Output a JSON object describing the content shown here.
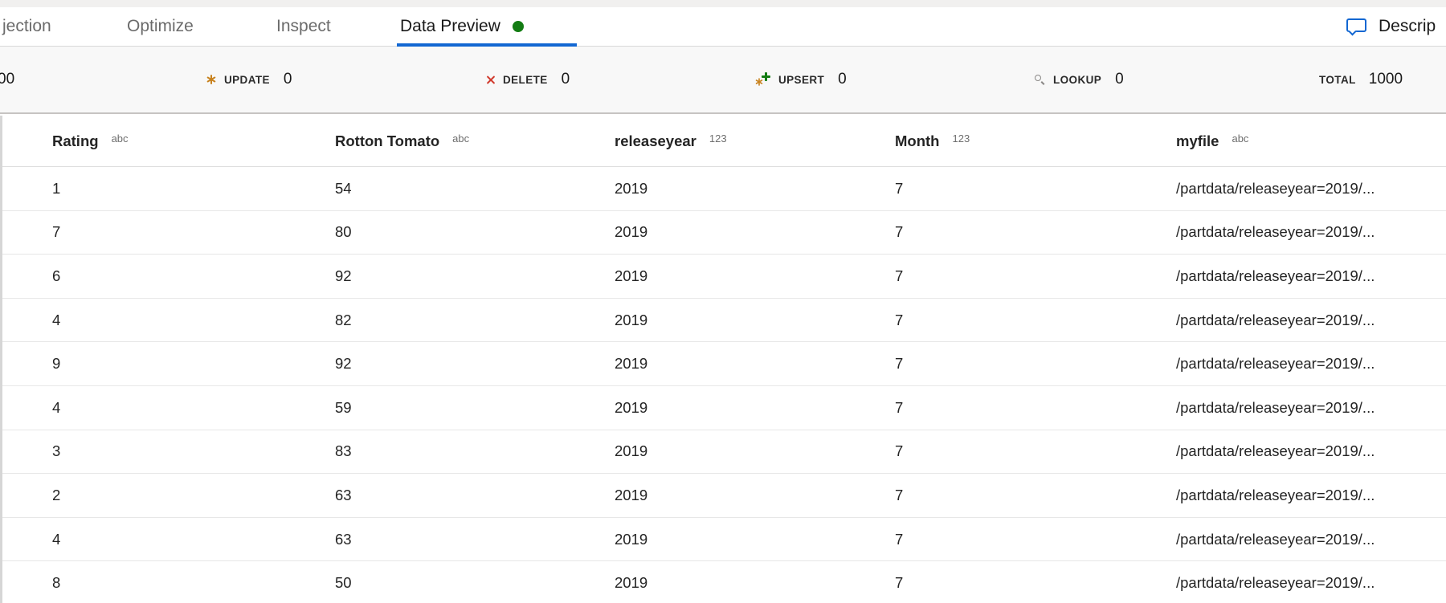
{
  "tabs": {
    "items": [
      {
        "label": "jection",
        "active": false
      },
      {
        "label": "Optimize",
        "active": false
      },
      {
        "label": "Inspect",
        "active": false
      },
      {
        "label": "Data Preview",
        "active": true,
        "status_dot": true
      }
    ],
    "description_label": "Descrip"
  },
  "stats": {
    "partial_count": "00",
    "items": [
      {
        "label": "UPDATE",
        "value": "0",
        "icon": "update-asterisk-icon"
      },
      {
        "label": "DELETE",
        "value": "0",
        "icon": "delete-x-icon"
      },
      {
        "label": "UPSERT",
        "value": "0",
        "icon": "upsert-asterisk-plus-icon"
      },
      {
        "label": "LOOKUP",
        "value": "0",
        "icon": "lookup-magnifier-icon"
      }
    ],
    "total_label": "TOTAL",
    "total_value": "1000"
  },
  "table": {
    "columns": [
      {
        "name": "Rating",
        "type": "abc"
      },
      {
        "name": "Rotton Tomato",
        "type": "abc"
      },
      {
        "name": "releaseyear",
        "type": "123"
      },
      {
        "name": "Month",
        "type": "123"
      },
      {
        "name": "myfile",
        "type": "abc"
      }
    ],
    "rows": [
      [
        "1",
        "54",
        "2019",
        "7",
        "/partdata/releaseyear=2019/..."
      ],
      [
        "7",
        "80",
        "2019",
        "7",
        "/partdata/releaseyear=2019/..."
      ],
      [
        "6",
        "92",
        "2019",
        "7",
        "/partdata/releaseyear=2019/..."
      ],
      [
        "4",
        "82",
        "2019",
        "7",
        "/partdata/releaseyear=2019/..."
      ],
      [
        "9",
        "92",
        "2019",
        "7",
        "/partdata/releaseyear=2019/..."
      ],
      [
        "4",
        "59",
        "2019",
        "7",
        "/partdata/releaseyear=2019/..."
      ],
      [
        "3",
        "83",
        "2019",
        "7",
        "/partdata/releaseyear=2019/..."
      ],
      [
        "2",
        "63",
        "2019",
        "7",
        "/partdata/releaseyear=2019/..."
      ],
      [
        "4",
        "63",
        "2019",
        "7",
        "/partdata/releaseyear=2019/..."
      ],
      [
        "8",
        "50",
        "2019",
        "7",
        "/partdata/releaseyear=2019/..."
      ]
    ]
  },
  "colors": {
    "accent_blue": "#1267D2",
    "status_green": "#137C13",
    "update_orange": "#C8821E",
    "delete_red": "#D13B2E",
    "lookup_gray": "#8A8886"
  }
}
